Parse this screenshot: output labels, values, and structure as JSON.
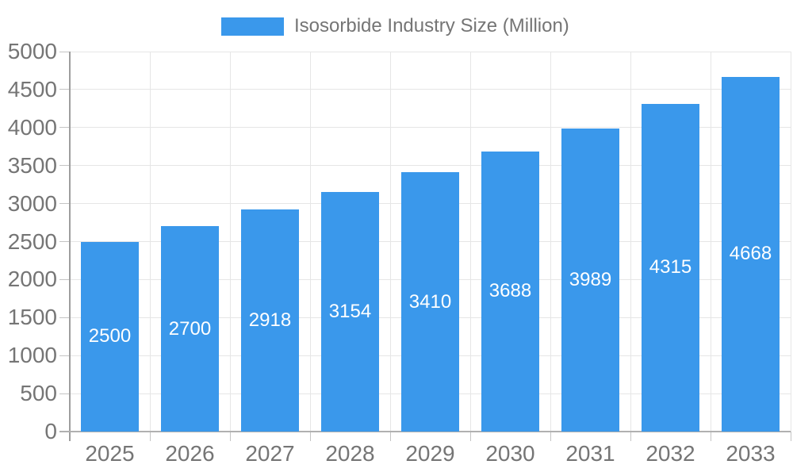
{
  "legend": {
    "label": "Isosorbide Industry Size (Million)"
  },
  "colors": {
    "bar": "#3A98EB",
    "axis_text": "#757575",
    "value_text": "#FFFFFF",
    "grid": "#E6E6E6",
    "axis_line": "#9E9E9E",
    "baseline": "#B0B0B0",
    "tick": "#C4C4C4"
  },
  "chart_data": {
    "type": "bar",
    "title": "Isosorbide Industry Size (Million)",
    "categories": [
      "2025",
      "2026",
      "2027",
      "2028",
      "2029",
      "2030",
      "2031",
      "2032",
      "2033"
    ],
    "series": [
      {
        "name": "Isosorbide Industry Size (Million)",
        "values": [
          2500,
          2700,
          2918,
          3154,
          3410,
          3688,
          3989,
          4315,
          4668
        ]
      }
    ],
    "xlabel": "",
    "ylabel": "",
    "ylim": [
      0,
      5000
    ],
    "ytick_step": 500,
    "grid": true,
    "legend_position": "top-center",
    "bar_value_labels": "inside-center"
  }
}
